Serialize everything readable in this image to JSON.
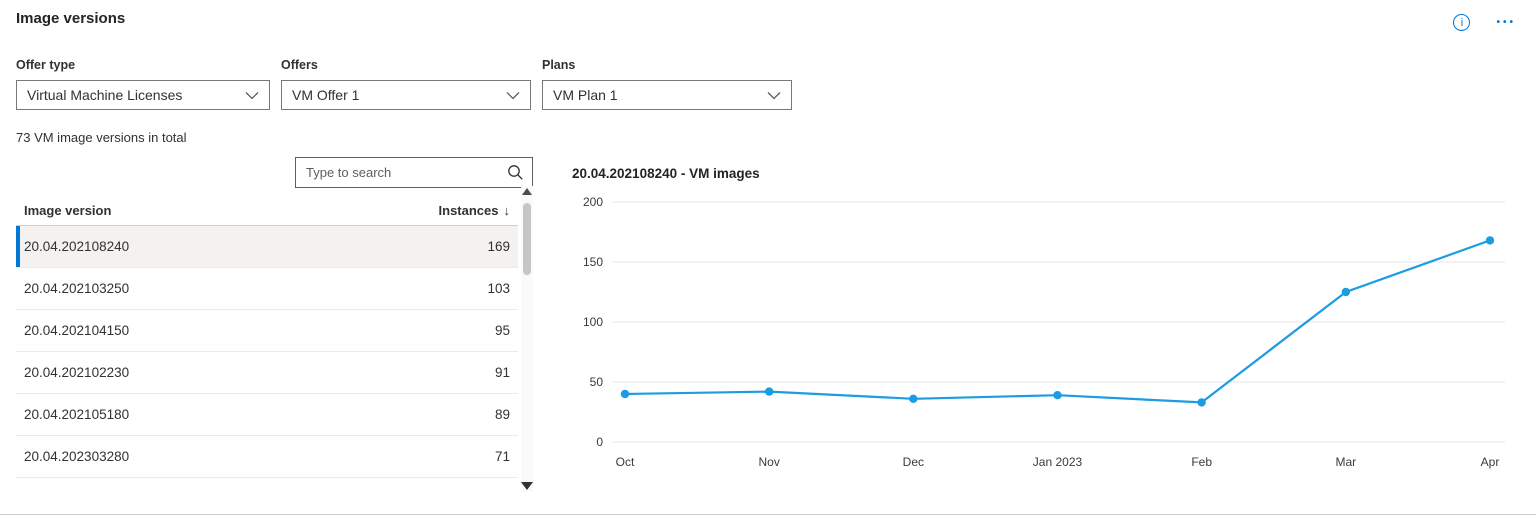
{
  "header": {
    "title": "Image versions"
  },
  "icons": {
    "info": "i",
    "more": "•••",
    "sort_desc": "↓"
  },
  "filters": {
    "offer_type": {
      "label": "Offer type",
      "value": "Virtual Machine Licenses"
    },
    "offers": {
      "label": "Offers",
      "value": "VM Offer 1"
    },
    "plans": {
      "label": "Plans",
      "value": "VM Plan 1"
    }
  },
  "summary": "73 VM image versions in total",
  "search": {
    "placeholder": "Type to search"
  },
  "table": {
    "columns": [
      "Image version",
      "Instances"
    ],
    "rows": [
      {
        "version": "20.04.202108240",
        "instances": 169,
        "selected": true
      },
      {
        "version": "20.04.202103250",
        "instances": 103,
        "selected": false
      },
      {
        "version": "20.04.202104150",
        "instances": 95,
        "selected": false
      },
      {
        "version": "20.04.202102230",
        "instances": 91,
        "selected": false
      },
      {
        "version": "20.04.202105180",
        "instances": 89,
        "selected": false
      },
      {
        "version": "20.04.202303280",
        "instances": 71,
        "selected": false
      }
    ]
  },
  "chart_data": {
    "type": "line",
    "title": "20.04.202108240 - VM images",
    "categories": [
      "Oct",
      "Nov",
      "Dec",
      "Jan 2023",
      "Feb",
      "Mar",
      "Apr"
    ],
    "values": [
      40,
      42,
      36,
      39,
      33,
      125,
      168
    ],
    "ylim": [
      0,
      200
    ],
    "yticks": [
      0,
      50,
      100,
      150,
      200
    ],
    "xlabel": "",
    "ylabel": "",
    "grid": "horizontal",
    "legend_position": "none",
    "line_color": "#1b9ce3"
  }
}
